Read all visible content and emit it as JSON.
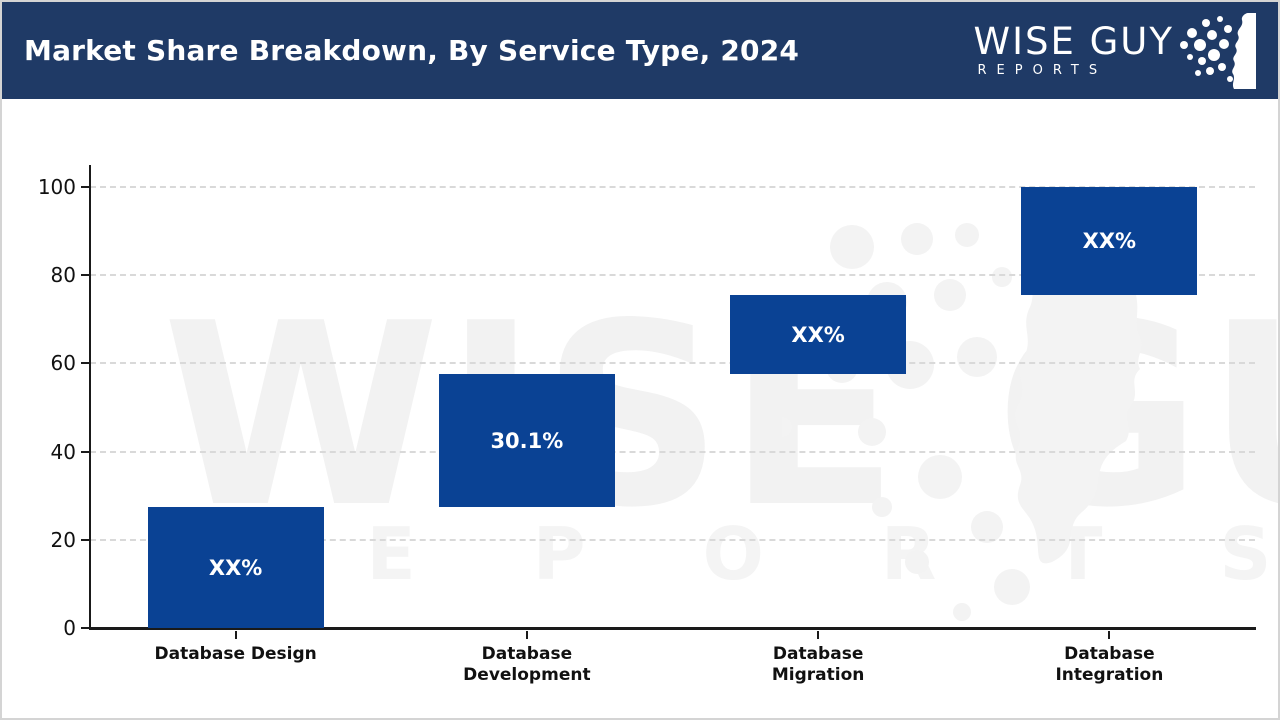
{
  "header": {
    "title": "Market Share Breakdown, By Service Type, 2024",
    "logo": {
      "line1": "WISE GUY",
      "line2": "REPORTS"
    }
  },
  "watermark": {
    "line1": "WISE GUY",
    "line2": "R E P O R T S"
  },
  "chart_data": {
    "type": "bar",
    "subtype": "waterfall",
    "title": "Market Share Breakdown, By Service Type, 2024",
    "categories": [
      "Database Design",
      "Database Development",
      "Database Migration",
      "Database Integration"
    ],
    "series": [
      {
        "name": "Market Share",
        "starts": [
          0,
          27.4,
          57.5,
          75.6
        ],
        "ends": [
          27.4,
          57.5,
          75.6,
          100
        ],
        "values": [
          27.4,
          30.1,
          18.1,
          24.4
        ]
      }
    ],
    "bar_labels": [
      "XX%",
      "30.1%",
      "XX%",
      "XX%"
    ],
    "xlabel": "",
    "ylabel": "",
    "ylim": [
      0,
      100
    ],
    "yticks": [
      0,
      20,
      40,
      60,
      80,
      100
    ],
    "grid": "dashed-horizontal",
    "legend": "none",
    "colors": {
      "bar": "#0a4294",
      "bar_label": "#ffffff",
      "header_bg": "#1f3a66",
      "grid": "#d9d9d9",
      "axis": "#1a1a1a",
      "watermark": "#f2f2f2"
    }
  }
}
